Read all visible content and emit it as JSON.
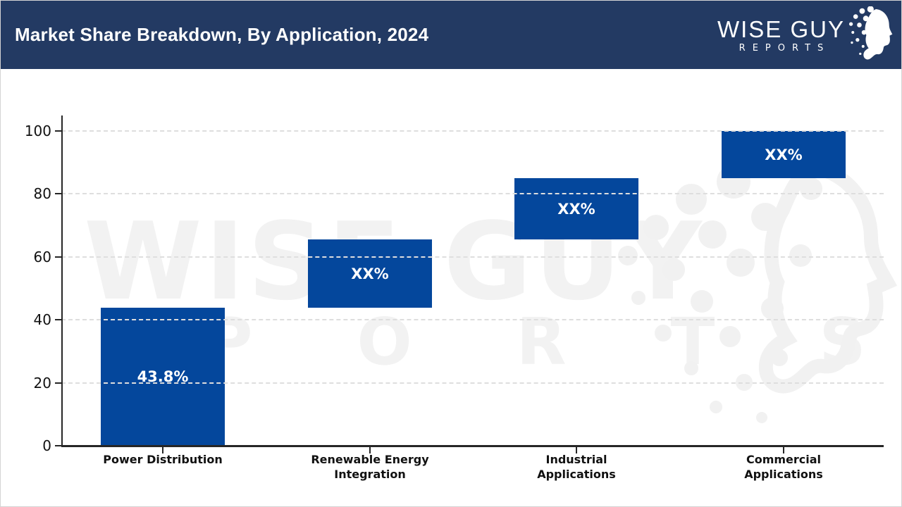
{
  "header": {
    "title": "Market Share Breakdown, By Application, 2024",
    "logo": {
      "name": "WISE GUY",
      "subtitle": "REPORTS"
    }
  },
  "watermark": {
    "line1": "WISE GUY",
    "line2": "P O R T S"
  },
  "chart_data": {
    "type": "bar",
    "subtype": "floating-segment-waterfall",
    "title": "Market Share Breakdown, By Application, 2024",
    "categories": [
      "Power Distribution",
      "Renewable Energy Integration",
      "Industrial Applications",
      "Commercial Applications"
    ],
    "category_lines": [
      [
        "Power Distribution"
      ],
      [
        "Renewable Energy",
        "Integration"
      ],
      [
        "Industrial",
        "Applications"
      ],
      [
        "Commercial",
        "Applications"
      ]
    ],
    "segments": [
      {
        "category": "Power Distribution",
        "start": 0,
        "end": 43.8,
        "label": "43.8%"
      },
      {
        "category": "Renewable Energy Integration",
        "start": 43.8,
        "end": 65.5,
        "label": "XX%"
      },
      {
        "category": "Industrial Applications",
        "start": 65.5,
        "end": 85,
        "label": "XX%"
      },
      {
        "category": "Commercial Applications",
        "start": 85,
        "end": 100,
        "label": "XX%"
      }
    ],
    "xlabel": "",
    "ylabel": "",
    "ylim": [
      0,
      100
    ],
    "yticks": [
      0,
      20,
      40,
      60,
      80,
      100
    ],
    "grid": "horizontal-dashed",
    "legend": "none"
  },
  "colors": {
    "header_bg": "#233a63",
    "bar": "#04479c",
    "bar_label": "#ffffff",
    "axis": "#262626",
    "grid": "#dedede",
    "tick_text": "#111111",
    "watermark": "#f2f2f2",
    "page_border": "#d4d4d4"
  }
}
